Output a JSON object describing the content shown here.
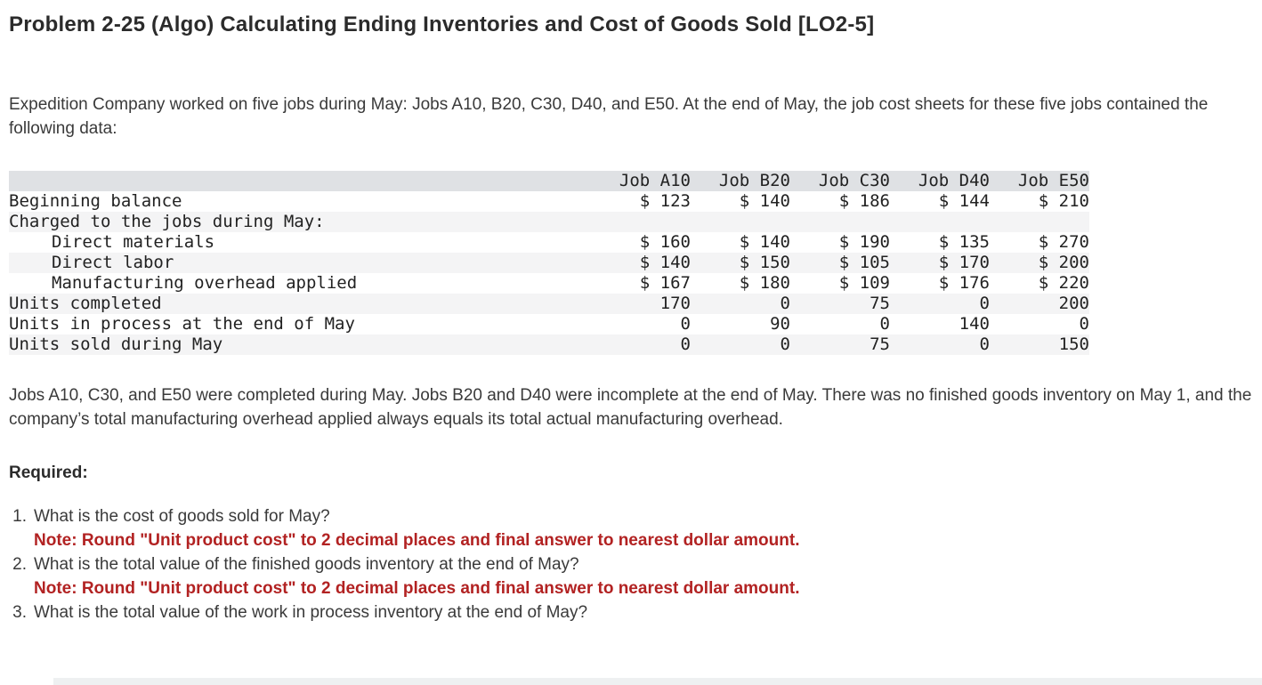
{
  "page": {
    "title": "Problem 2-25 (Algo) Calculating Ending Inventories and Cost of Goods Sold [LO2-5]",
    "intro": "Expedition Company worked on five jobs during May: Jobs A10, B20, C30, D40, and E50. At the end of May, the job cost sheets for these five jobs contained the following data:",
    "after_table": "Jobs A10, C30, and E50 were completed during May. Jobs B20 and D40 were incomplete at the end of May. There was no finished goods inventory on May 1, and the company’s total manufacturing overhead applied always equals its total actual manufacturing overhead.",
    "required_label": "Required:"
  },
  "table": {
    "columns": [
      "Job A10",
      "Job B20",
      "Job C30",
      "Job D40",
      "Job E50"
    ],
    "rows": [
      {
        "label": "Beginning balance",
        "values": [
          "$ 123",
          "$ 140",
          "$ 186",
          "$ 144",
          "$ 210"
        ]
      },
      {
        "label": "Charged to the jobs during May:",
        "values": [
          "",
          "",
          "",
          "",
          ""
        ]
      },
      {
        "label": "Direct materials",
        "values": [
          "$ 160",
          "$ 140",
          "$ 190",
          "$ 135",
          "$ 270"
        ]
      },
      {
        "label": "Direct labor",
        "values": [
          "$ 140",
          "$ 150",
          "$ 105",
          "$ 170",
          "$ 200"
        ]
      },
      {
        "label": "Manufacturing overhead applied",
        "values": [
          "$ 167",
          "$ 180",
          "$ 109",
          "$ 176",
          "$ 220"
        ]
      },
      {
        "label": "Units completed",
        "values": [
          "170",
          "0",
          "75",
          "0",
          "200"
        ]
      },
      {
        "label": "Units in process at the end of May",
        "values": [
          "0",
          "90",
          "0",
          "140",
          "0"
        ]
      },
      {
        "label": "Units sold during May",
        "values": [
          "0",
          "0",
          "75",
          "0",
          "150"
        ]
      }
    ]
  },
  "questions": [
    {
      "number": "1.",
      "text": "What is the cost of goods sold for May?",
      "note": "Note: Round \"Unit product cost\" to 2 decimal places and final answer to nearest dollar amount."
    },
    {
      "number": "2.",
      "text": "What is the total value of the finished goods inventory at the end of May?",
      "note": "Note: Round \"Unit product cost\" to 2 decimal places and final answer to nearest dollar amount."
    },
    {
      "number": "3.",
      "text": "What is the total value of the work in process inventory at the end of May?"
    }
  ],
  "colors": {
    "note_red": "#b22222"
  }
}
